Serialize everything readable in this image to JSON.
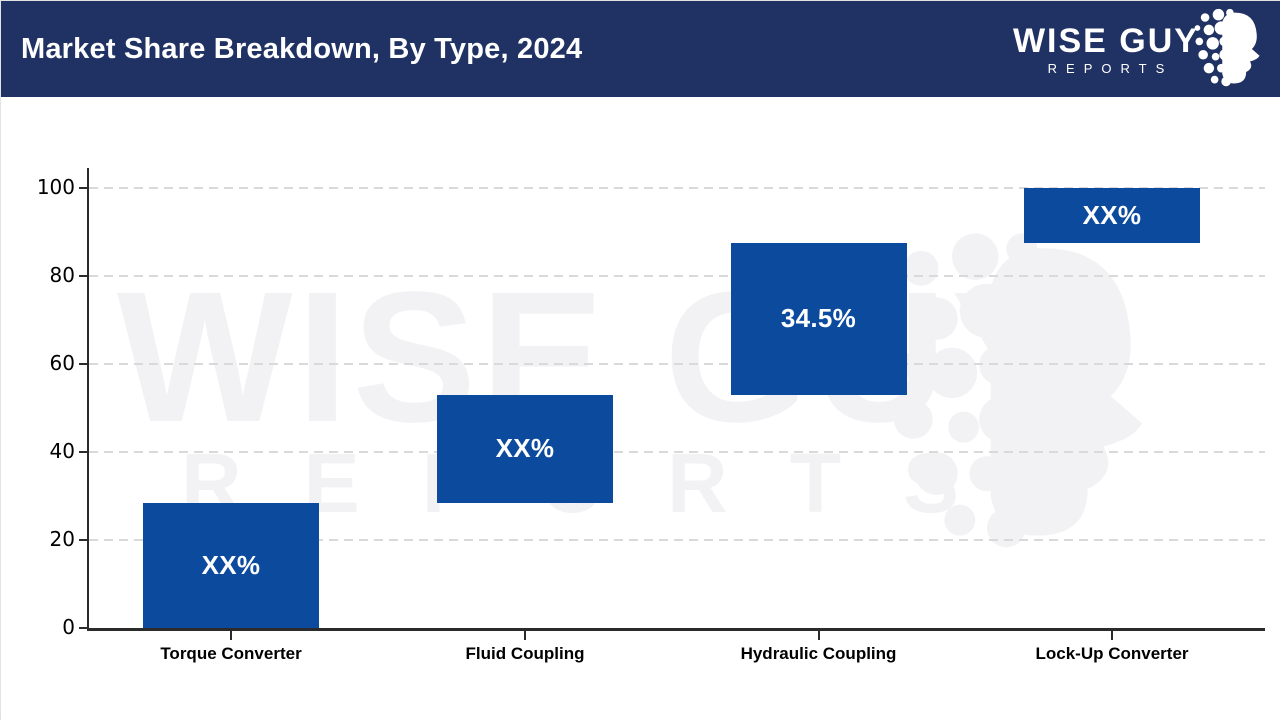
{
  "header": {
    "title": "Market Share Breakdown, By Type, 2024",
    "logo": {
      "line1": "WISE GUY",
      "line2": "REPORTS"
    }
  },
  "watermark": {
    "line1": "WISE GUY",
    "line2": "REPORTS"
  },
  "colors": {
    "header_bg": "#203264",
    "bar_color": "#0c4a9e",
    "grid_color": "#d9d9d9",
    "axis_color": "#2b2b2b",
    "watermark_color": "#f2f2f4"
  },
  "chart_data": {
    "type": "bar",
    "subtype": "waterfall",
    "title": "Market Share Breakdown, By Type, 2024",
    "xlabel": "",
    "ylabel": "",
    "categories": [
      "Torque Converter",
      "Fluid Coupling",
      "Hydraulic Coupling",
      "Lock-Up Converter"
    ],
    "segments": [
      {
        "category": "Torque Converter",
        "label": "XX%",
        "start": 0,
        "end": 28.5
      },
      {
        "category": "Fluid Coupling",
        "label": "XX%",
        "start": 28.5,
        "end": 53
      },
      {
        "category": "Hydraulic Coupling",
        "label": "34.5%",
        "start": 53,
        "end": 87.5
      },
      {
        "category": "Lock-Up Converter",
        "label": "XX%",
        "start": 87.5,
        "end": 100
      }
    ],
    "yticks": [
      0,
      20,
      40,
      60,
      80,
      100
    ],
    "ylim": [
      0,
      104
    ],
    "grid": "dashed-horizontal",
    "legend": "none"
  }
}
